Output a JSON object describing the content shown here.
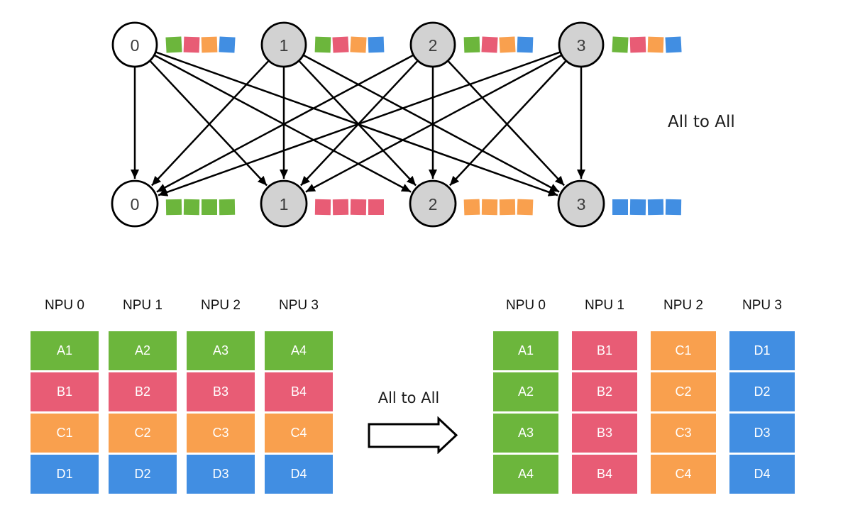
{
  "graph": {
    "label": "All to All",
    "top_nodes": [
      {
        "id": "0",
        "fill": "white",
        "chunks": [
          "green",
          "pink",
          "orange",
          "blue"
        ]
      },
      {
        "id": "1",
        "fill": "gray",
        "chunks": [
          "green",
          "pink",
          "orange",
          "blue"
        ]
      },
      {
        "id": "2",
        "fill": "gray",
        "chunks": [
          "green",
          "pink",
          "orange",
          "blue"
        ]
      },
      {
        "id": "3",
        "fill": "gray",
        "chunks": [
          "green",
          "pink",
          "orange",
          "blue"
        ]
      }
    ],
    "bottom_nodes": [
      {
        "id": "0",
        "fill": "white",
        "chunks": [
          "green",
          "green",
          "green",
          "green"
        ]
      },
      {
        "id": "1",
        "fill": "gray",
        "chunks": [
          "pink",
          "pink",
          "pink",
          "pink"
        ]
      },
      {
        "id": "2",
        "fill": "gray",
        "chunks": [
          "orange",
          "orange",
          "orange",
          "orange"
        ]
      },
      {
        "id": "3",
        "fill": "gray",
        "chunks": [
          "blue",
          "blue",
          "blue",
          "blue"
        ]
      }
    ]
  },
  "transform": {
    "label": "All to All"
  },
  "tables": {
    "left": {
      "headers": [
        "NPU 0",
        "NPU 1",
        "NPU 2",
        "NPU 3"
      ],
      "columns": [
        [
          {
            "label": "A1",
            "color": "green"
          },
          {
            "label": "B1",
            "color": "pink"
          },
          {
            "label": "C1",
            "color": "orange"
          },
          {
            "label": "D1",
            "color": "blue"
          }
        ],
        [
          {
            "label": "A2",
            "color": "green"
          },
          {
            "label": "B2",
            "color": "pink"
          },
          {
            "label": "C2",
            "color": "orange"
          },
          {
            "label": "D2",
            "color": "blue"
          }
        ],
        [
          {
            "label": "A3",
            "color": "green"
          },
          {
            "label": "B3",
            "color": "pink"
          },
          {
            "label": "C3",
            "color": "orange"
          },
          {
            "label": "D3",
            "color": "blue"
          }
        ],
        [
          {
            "label": "A4",
            "color": "green"
          },
          {
            "label": "B4",
            "color": "pink"
          },
          {
            "label": "C4",
            "color": "orange"
          },
          {
            "label": "D4",
            "color": "blue"
          }
        ]
      ]
    },
    "right": {
      "headers": [
        "NPU 0",
        "NPU 1",
        "NPU 2",
        "NPU 3"
      ],
      "columns": [
        [
          {
            "label": "A1",
            "color": "green"
          },
          {
            "label": "A2",
            "color": "green"
          },
          {
            "label": "A3",
            "color": "green"
          },
          {
            "label": "A4",
            "color": "green"
          }
        ],
        [
          {
            "label": "B1",
            "color": "pink"
          },
          {
            "label": "B2",
            "color": "pink"
          },
          {
            "label": "B3",
            "color": "pink"
          },
          {
            "label": "B4",
            "color": "pink"
          }
        ],
        [
          {
            "label": "C1",
            "color": "orange"
          },
          {
            "label": "C2",
            "color": "orange"
          },
          {
            "label": "C3",
            "color": "orange"
          },
          {
            "label": "C4",
            "color": "orange"
          }
        ],
        [
          {
            "label": "D1",
            "color": "blue"
          },
          {
            "label": "D2",
            "color": "blue"
          },
          {
            "label": "D3",
            "color": "blue"
          },
          {
            "label": "D4",
            "color": "blue"
          }
        ]
      ]
    }
  },
  "colors": {
    "green": "#6CB63C",
    "pink": "#E85C75",
    "orange": "#F9A04E",
    "blue": "#418EE2",
    "node_gray": "#D2D2D2",
    "node_white": "#FFFFFF",
    "stroke": "#000000"
  }
}
